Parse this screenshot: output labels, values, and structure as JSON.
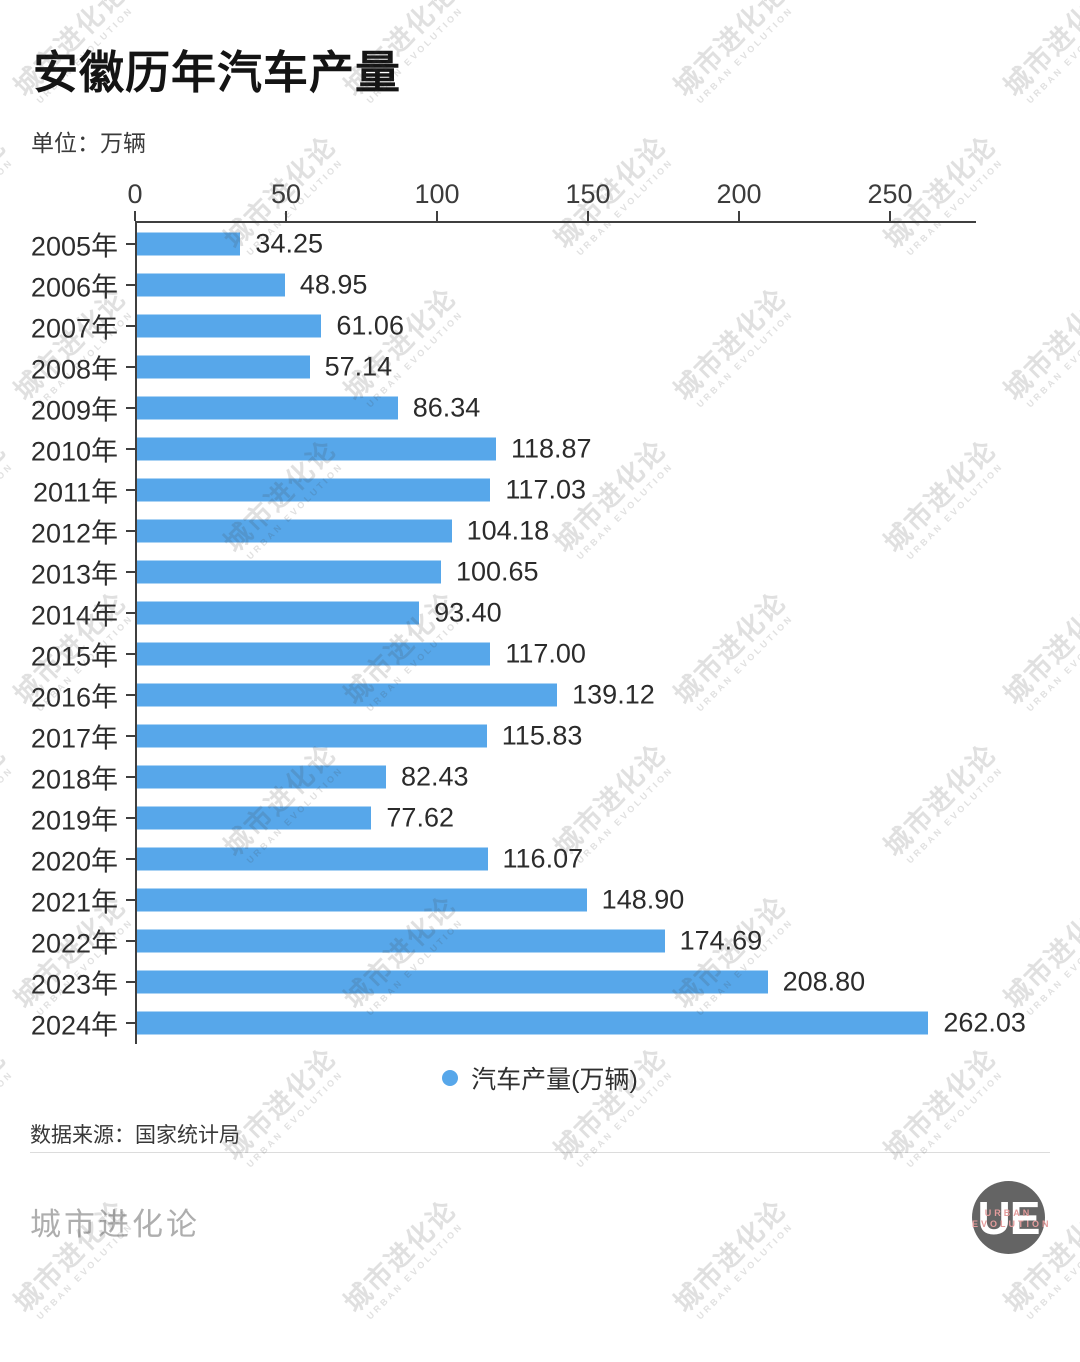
{
  "header": {
    "title": "安徽历年汽车产量",
    "unit": "单位：万辆"
  },
  "chart_data": {
    "type": "bar",
    "orientation": "horizontal",
    "title": "安徽历年汽车产量",
    "unit_label": "单位：万辆",
    "categories": [
      "2005年",
      "2006年",
      "2007年",
      "2008年",
      "2009年",
      "2010年",
      "2011年",
      "2012年",
      "2013年",
      "2014年",
      "2015年",
      "2016年",
      "2017年",
      "2018年",
      "2019年",
      "2020年",
      "2021年",
      "2022年",
      "2023年",
      "2024年"
    ],
    "values": [
      34.25,
      48.95,
      61.06,
      57.14,
      86.34,
      118.87,
      117.03,
      104.18,
      100.65,
      93.4,
      117.0,
      139.12,
      115.83,
      82.43,
      77.62,
      116.07,
      148.9,
      174.69,
      208.8,
      262.03
    ],
    "series_name": "汽车产量(万辆)",
    "x_ticks": [
      0,
      50,
      100,
      150,
      200,
      250
    ],
    "xlim": [
      0,
      278
    ],
    "value_decimals": 2,
    "bar_color": "#57A7EA",
    "grid": false,
    "legend_position": "bottom-center"
  },
  "legend": {
    "label": "汽车产量(万辆)",
    "dot_color": "#57A7EA"
  },
  "footer": {
    "source": "数据来源：国家统计局",
    "brand": "城市进化论",
    "logo": {
      "monogram": "UE",
      "line1": "URBAN",
      "line2": "EVOLUTION"
    }
  },
  "watermark": {
    "cjk": "城市进化论",
    "latin": "URBAN EVOLUTION"
  }
}
